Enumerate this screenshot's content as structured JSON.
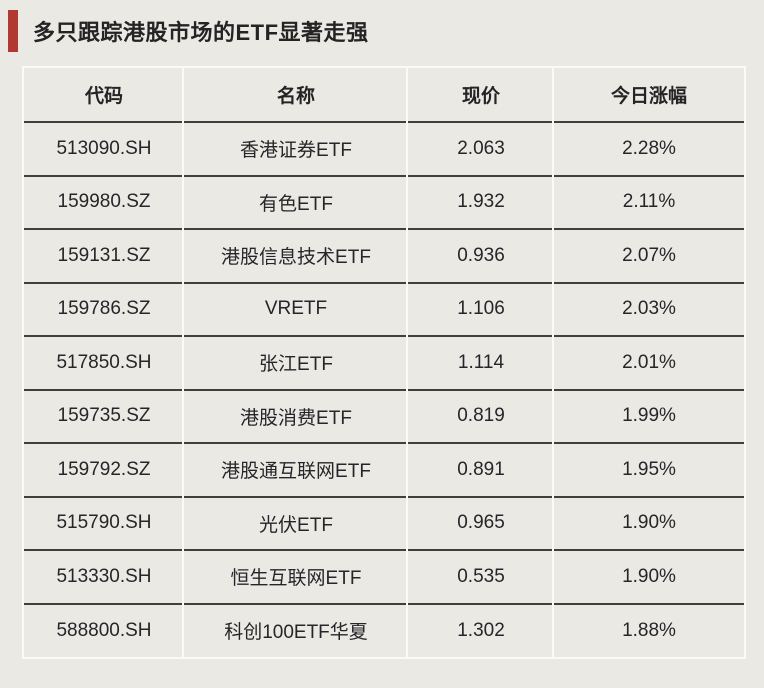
{
  "title": {
    "text": "多只跟踪港股市场的ETF显著走强"
  },
  "colors": {
    "accent_bar": "#b23931",
    "background": "#ebe9e4",
    "grid_dark": "#413f3d",
    "grid_light": "#fbfaf7",
    "text": "#242424"
  },
  "table": {
    "headers": [
      "代码",
      "名称",
      "现价",
      "今日涨幅"
    ],
    "rows": [
      {
        "code": "513090.SH",
        "name": "香港证券ETF",
        "price": "2.063",
        "change": "2.28%"
      },
      {
        "code": "159980.SZ",
        "name": "有色ETF",
        "price": "1.932",
        "change": "2.11%"
      },
      {
        "code": "159131.SZ",
        "name": "港股信息技术ETF",
        "price": "0.936",
        "change": "2.07%"
      },
      {
        "code": "159786.SZ",
        "name": "VRETF",
        "price": "1.106",
        "change": "2.03%"
      },
      {
        "code": "517850.SH",
        "name": "张江ETF",
        "price": "1.114",
        "change": "2.01%"
      },
      {
        "code": "159735.SZ",
        "name": "港股消费ETF",
        "price": "0.819",
        "change": "1.99%"
      },
      {
        "code": "159792.SZ",
        "name": "港股通互联网ETF",
        "price": "0.891",
        "change": "1.95%"
      },
      {
        "code": "515790.SH",
        "name": "光伏ETF",
        "price": "0.965",
        "change": "1.90%"
      },
      {
        "code": "513330.SH",
        "name": "恒生互联网ETF",
        "price": "0.535",
        "change": "1.90%"
      },
      {
        "code": "588800.SH",
        "name": "科创100ETF华夏",
        "price": "1.302",
        "change": "1.88%"
      }
    ]
  },
  "chart_data": {
    "type": "table",
    "title": "多只跟踪港股市场的ETF显著走强",
    "columns": [
      "代码",
      "名称",
      "现价",
      "今日涨幅"
    ],
    "rows": [
      [
        "513090.SH",
        "香港证券ETF",
        2.063,
        "2.28%"
      ],
      [
        "159980.SZ",
        "有色ETF",
        1.932,
        "2.11%"
      ],
      [
        "159131.SZ",
        "港股信息技术ETF",
        0.936,
        "2.07%"
      ],
      [
        "159786.SZ",
        "VRETF",
        1.106,
        "2.03%"
      ],
      [
        "517850.SH",
        "张江ETF",
        1.114,
        "2.01%"
      ],
      [
        "159735.SZ",
        "港股消费ETF",
        0.819,
        "1.99%"
      ],
      [
        "159792.SZ",
        "港股通互联网ETF",
        0.891,
        "1.95%"
      ],
      [
        "515790.SH",
        "光伏ETF",
        0.965,
        "1.90%"
      ],
      [
        "513330.SH",
        "恒生互联网ETF",
        0.535,
        "1.90%"
      ],
      [
        "588800.SH",
        "科创100ETF华夏",
        1.302,
        "1.88%"
      ]
    ]
  }
}
